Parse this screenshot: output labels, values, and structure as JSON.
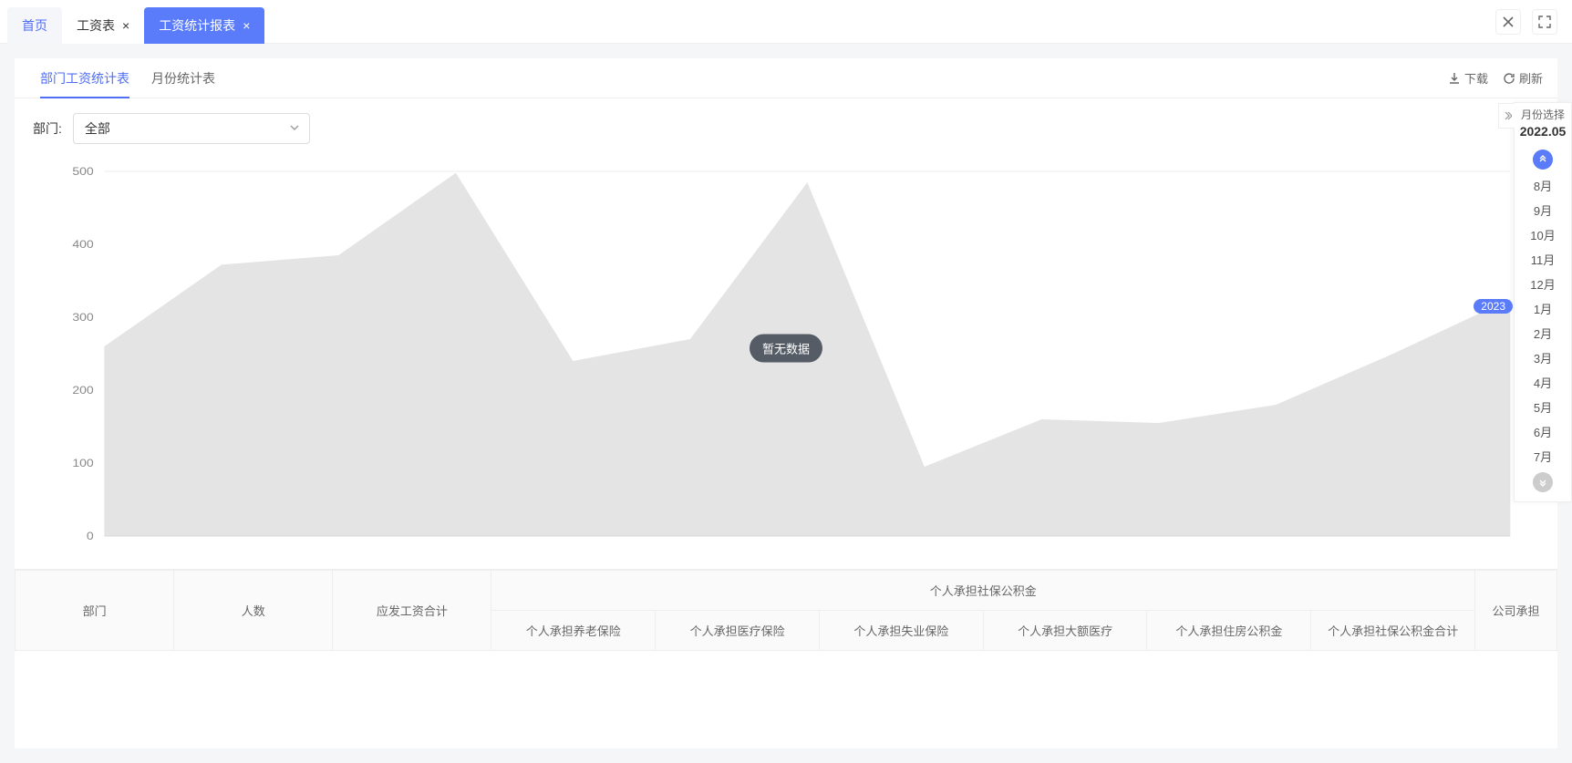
{
  "top": {
    "tabs": [
      {
        "label": "首页",
        "closable": false,
        "state": "home"
      },
      {
        "label": "工资表",
        "closable": true,
        "state": "normal"
      },
      {
        "label": "工资统计报表",
        "closable": true,
        "state": "active"
      }
    ]
  },
  "subTabs": {
    "items": [
      {
        "label": "部门工资统计表",
        "active": true
      },
      {
        "label": "月份统计表",
        "active": false
      }
    ],
    "actions": {
      "download": "下载",
      "refresh": "刷新"
    }
  },
  "filter": {
    "label": "部门:",
    "selected": "全部"
  },
  "chart": {
    "type": "area",
    "noDataText": "暂无数据",
    "ylabel_color": "#888",
    "ylim": [
      0,
      500
    ],
    "ytick_step": 100,
    "yticks": [
      0,
      100,
      200,
      300,
      400,
      500
    ],
    "background_color": "#ffffff",
    "area_fill": "#e4e4e4",
    "area_fill_opacity": 1.0,
    "axis_color": "#d9d9d9",
    "top_border_color": "#eeeeee",
    "label_fontsize": 12,
    "points_count": 13,
    "values": [
      260,
      372,
      385,
      498,
      240,
      270,
      485,
      95,
      160,
      155,
      180,
      250,
      325
    ]
  },
  "table": {
    "cols_fixed": [
      "部门",
      "人数",
      "应发工资合计"
    ],
    "group_header": "个人承担社保公积金",
    "group_cols": [
      "个人承担养老保险",
      "个人承担医疗保险",
      "个人承担失业保险",
      "个人承担大额医疗",
      "个人承担住房公积金",
      "个人承担社保公积金合计"
    ],
    "trailing_col_partial": "公司承担"
  },
  "monthPicker": {
    "title": "月份选择",
    "selected": "2022.05",
    "yearBadge": "2023",
    "yearBadgeOffsetIndex": 5,
    "months": [
      "8月",
      "9月",
      "10月",
      "11月",
      "12月",
      "1月",
      "2月",
      "3月",
      "4月",
      "5月",
      "6月",
      "7月"
    ]
  },
  "colors": {
    "primary": "#5b7cfa",
    "primary_text": "#4f6df5",
    "border": "#eeeeee",
    "text_muted": "#666666"
  }
}
